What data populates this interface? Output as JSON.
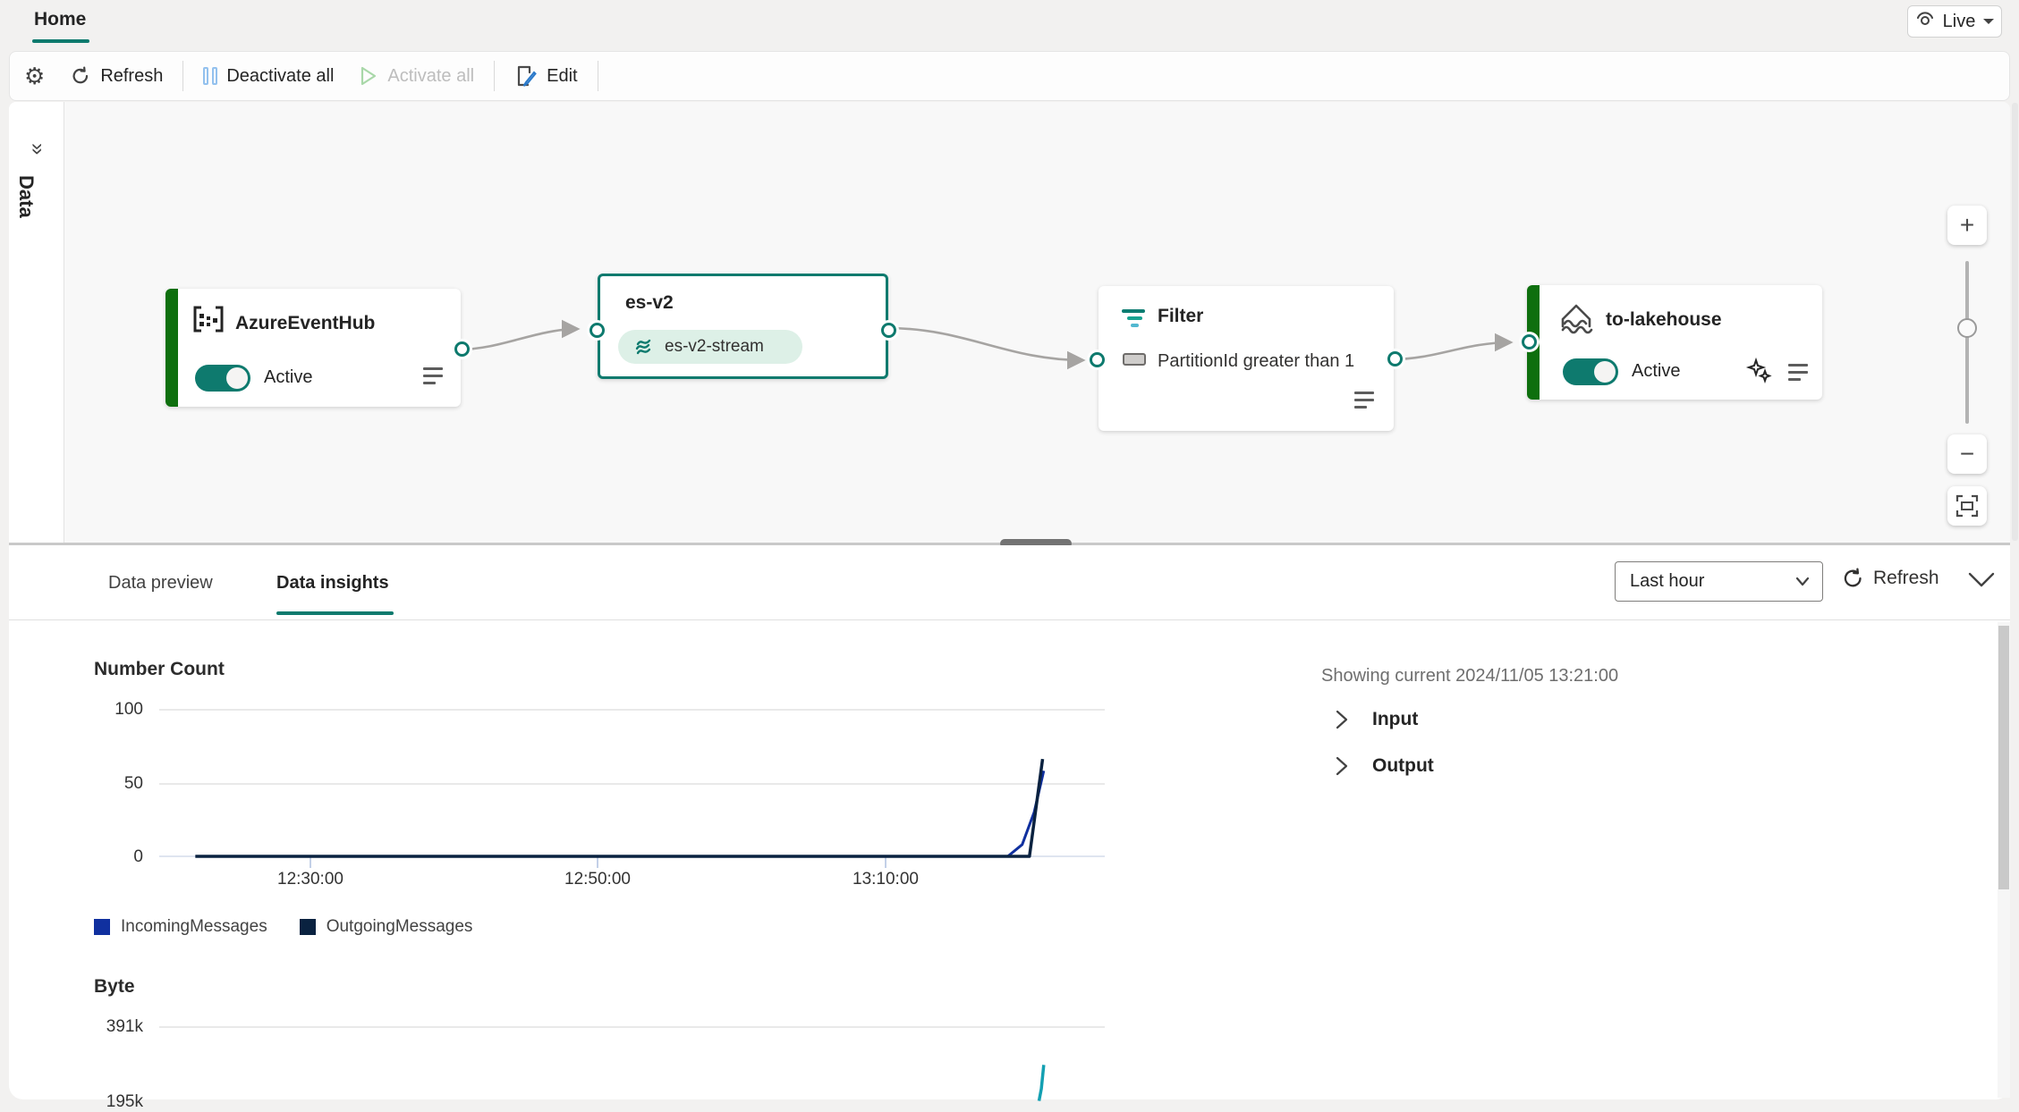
{
  "header": {
    "home_tab": "Home",
    "live_label": "Live"
  },
  "toolbar": {
    "refresh_label": "Refresh",
    "deactivate_all_label": "Deactivate all",
    "activate_all_label": "Activate all",
    "edit_label": "Edit"
  },
  "sidebar": {
    "label": "Data",
    "expand_glyph": "»"
  },
  "canvas": {
    "nodes": [
      {
        "id": "azure-event-hub",
        "title": "AzureEventHub",
        "toggle_label": "Active",
        "toggle_state": "on"
      },
      {
        "id": "es-v2",
        "title": "es-v2",
        "stream_label": "es-v2-stream",
        "selected": true
      },
      {
        "id": "filter",
        "title": "Filter",
        "condition": "PartitionId greater than 1"
      },
      {
        "id": "to-lakehouse",
        "title": "to-lakehouse",
        "toggle_label": "Active",
        "toggle_state": "on"
      }
    ],
    "zoom": {
      "plus": "+",
      "minus": "−"
    }
  },
  "bottom_panel": {
    "tabs": [
      {
        "label": "Data preview",
        "active": false
      },
      {
        "label": "Data insights",
        "active": true
      }
    ],
    "time_range_value": "Last hour",
    "refresh_label": "Refresh",
    "showing_current": "Showing current 2024/11/05 13:21:00",
    "sections": [
      {
        "label": "Input"
      },
      {
        "label": "Output"
      }
    ]
  },
  "chart_data": [
    {
      "id": "nc",
      "type": "line",
      "title": "Number Count",
      "ylim": [
        0,
        100
      ],
      "y_tick_labels": [
        "100",
        "50",
        "0"
      ],
      "x_tick_labels": [
        "12:30:00",
        "12:50:00",
        "13:10:00"
      ],
      "x_range": [
        "12:21:00",
        "13:21:00"
      ],
      "grid": true,
      "legend_position": "bottom",
      "series": [
        {
          "name": "IncomingMessages",
          "color": "#10309f",
          "width": 3,
          "points": [
            [
              "12:22:00",
              0
            ],
            [
              "13:18:30",
              0
            ],
            [
              "13:19:30",
              8
            ],
            [
              "13:20:20",
              30
            ],
            [
              "13:21:00",
              58
            ]
          ]
        },
        {
          "name": "OutgoingMessages",
          "color": "#0a2240",
          "width": 3.5,
          "points": [
            [
              "12:22:00",
              0
            ],
            [
              "13:20:00",
              0
            ],
            [
              "13:20:55",
              66
            ]
          ]
        }
      ]
    },
    {
      "id": "byte",
      "type": "line",
      "title": "Byte",
      "y_tick_labels": [
        "391k",
        "195k"
      ],
      "y_ticks_k": [
        391,
        195
      ],
      "x_range": [
        "12:21:00",
        "13:21:00"
      ],
      "grid": true,
      "note": "chart partially cut off at bottom of view",
      "series": [
        {
          "name": "Byte",
          "color": "#14a0b2",
          "width": 3.5,
          "points": [
            [
              "13:20:40",
              196
            ],
            [
              "13:20:50",
              228
            ],
            [
              "13:21:00",
              290
            ]
          ]
        }
      ]
    }
  ]
}
